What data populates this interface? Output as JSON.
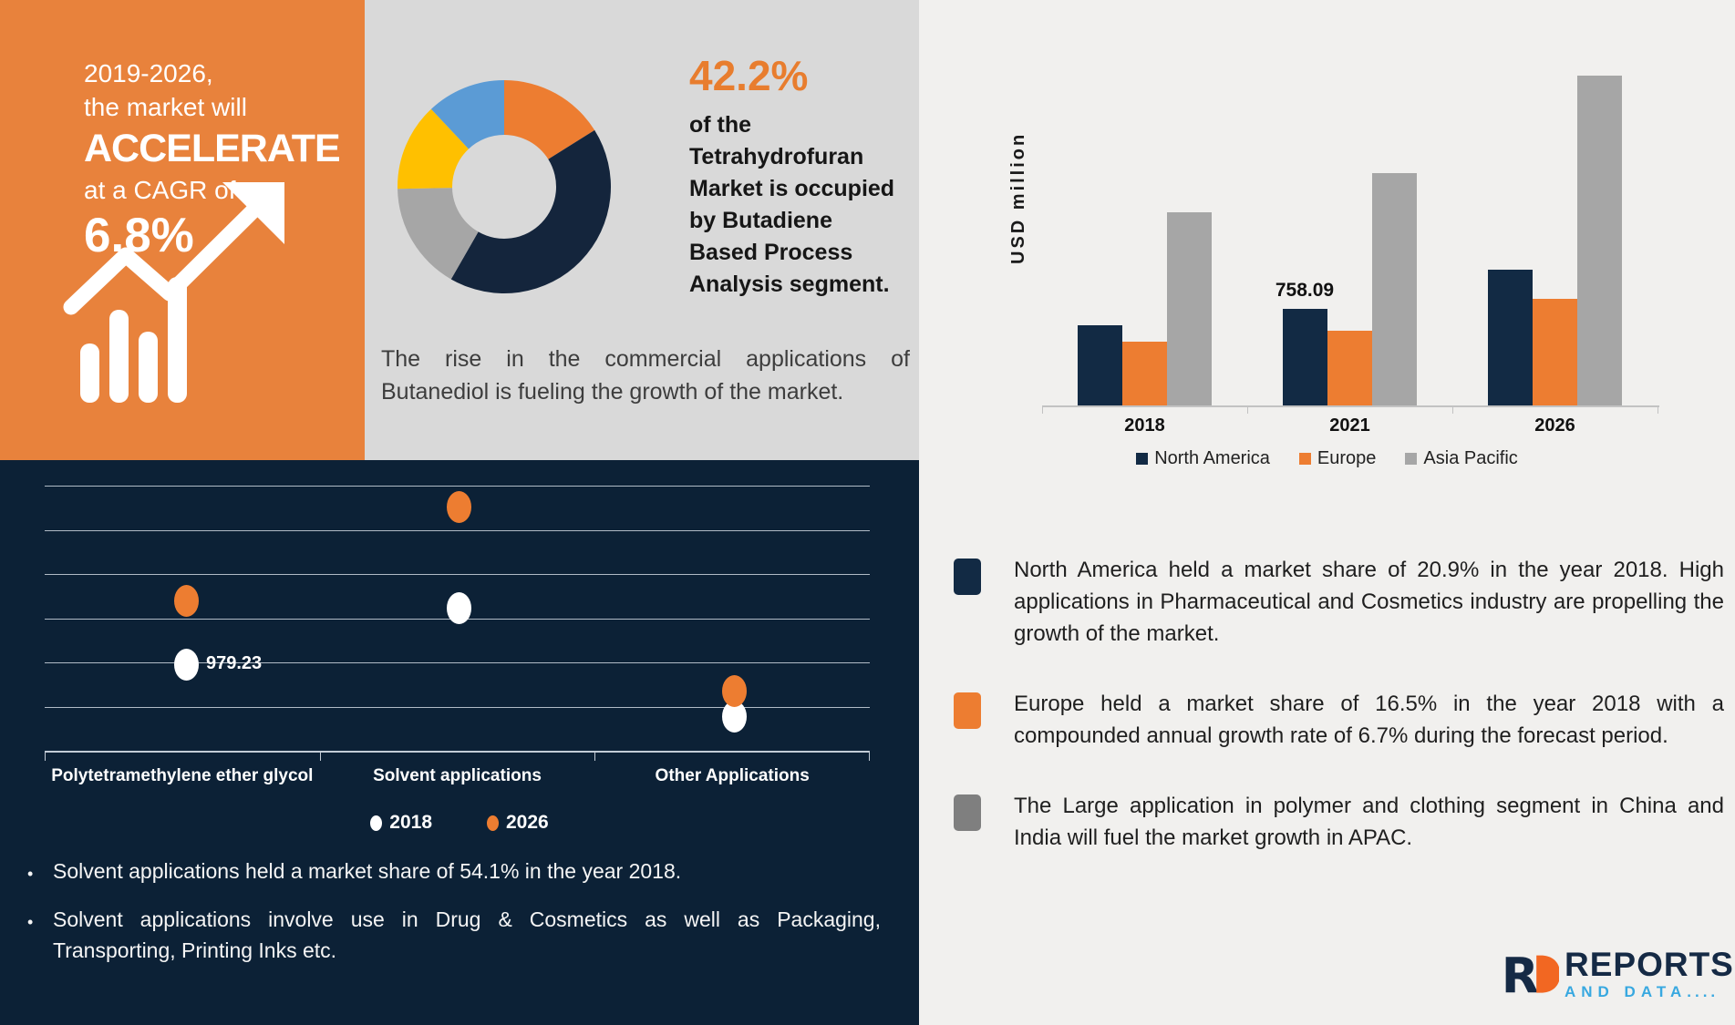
{
  "colors": {
    "orange": "#ED7D31",
    "orange_panel": "#E8823C",
    "navy": "#122A44",
    "navy_panel_bg": "#0C2136",
    "gray_series": "#A6A6A6",
    "gray_panel": "#D9D9D9",
    "white_panel_bg": "#F1F0EE",
    "yellow": "#FFC000",
    "blue": "#5B9BD5",
    "insight_gray": "#7F7F7F",
    "logo_navy": "#152A45",
    "logo_blue": "#38A8E0"
  },
  "accelerate_panel": {
    "period": "2019-2026,",
    "line2": "the market will",
    "line3": "ACCELERATE",
    "line4": "at a CAGR of",
    "cagr": "6.8%"
  },
  "market_share_panel": {
    "headline_pct": "42.2%",
    "headline_lines": [
      "of the",
      "Tetrahydrofuran",
      "Market is occupied",
      "by Butadiene",
      "Based Process",
      "Analysis segment."
    ],
    "paragraph": "The rise in the commercial applications of Butanediol is fueling the growth of the market."
  },
  "solvent_section": {
    "bullets": [
      "Solvent applications held a market share of 54.1% in the year 2018.",
      "Solvent applications involve use in Drug & Cosmetics as well as Packaging, Transporting, Printing Inks etc."
    ]
  },
  "insights": [
    {
      "color": "#122A44",
      "text": "North America held a market share of 20.9% in the year 2018. High applications in Pharmaceutical and Cosmetics industry are propelling the growth of the market."
    },
    {
      "color": "#ED7D31",
      "text": "Europe held a market share of 16.5% in the year 2018 with a compounded annual growth rate of 6.7% during the forecast period."
    },
    {
      "color": "#7F7F7F",
      "text": "The Large application in polymer and clothing segment in China and India will fuel the market growth in APAC."
    }
  ],
  "logo": {
    "brand": "REPORTS",
    "sub": "AND DATA",
    "dots": "...."
  },
  "chart_data": [
    {
      "id": "process-share-donut",
      "type": "pie",
      "subtype": "donut",
      "annotation": "42.2% of the Tetrahydrofuran Market is occupied by Butadiene Based Process Analysis segment.",
      "segments": [
        {
          "label": "unlabeled segment (orange)",
          "value": 16.1,
          "color": "#ED7D31"
        },
        {
          "label": "Butadiene Based Process Analysis",
          "value": 42.2,
          "color": "#14253C"
        },
        {
          "label": "unlabeled segment (gray)",
          "value": 16.4,
          "color": "#A6A6A6"
        },
        {
          "label": "unlabeled segment (yellow)",
          "value": 13.3,
          "color": "#FFC000"
        },
        {
          "label": "unlabeled segment (blue)",
          "value": 12.0,
          "color": "#5B9BD5"
        }
      ]
    },
    {
      "id": "regional-market-bar",
      "type": "bar",
      "title": "",
      "ylabel": "USD million",
      "xlabel": "",
      "categories": [
        "2018",
        "2021",
        "2026"
      ],
      "series": [
        {
          "name": "North America",
          "color": "#122A44",
          "values": [
            630,
            758.09,
            1065
          ]
        },
        {
          "name": "Europe",
          "color": "#ED7D31",
          "values": [
            500,
            585,
            835
          ]
        },
        {
          "name": "Asia Pacific",
          "color": "#A6A6A6",
          "values": [
            1515,
            1825,
            2590
          ]
        }
      ],
      "value_labels": [
        {
          "series": 0,
          "category": 1,
          "text": "758.09"
        }
      ],
      "note": "only 758.09 labeled on chart; other values estimated from bar heights",
      "legend_position": "bottom",
      "grid": false,
      "ylim": [
        0,
        2720
      ]
    },
    {
      "id": "application-dot-plot",
      "type": "scatter",
      "subtype": "dot-plot",
      "categories": [
        "Polytetramethylene ether glycol",
        "Solvent applications",
        "Other Applications"
      ],
      "series": [
        {
          "name": "2018",
          "color": "#FFFFFF",
          "values": [
            979.23,
            1615,
            385
          ]
        },
        {
          "name": "2026",
          "color": "#ED7D31",
          "values": [
            1700,
            2760,
            680
          ]
        }
      ],
      "value_labels": [
        {
          "series": 0,
          "category": 0,
          "text": "979.23"
        }
      ],
      "note": "only 979.23 labeled on chart; other values estimated from gridlines (step 500)",
      "ylim": [
        0,
        3000
      ],
      "gridline_step": 500,
      "grid": true,
      "legend_position": "bottom"
    }
  ]
}
